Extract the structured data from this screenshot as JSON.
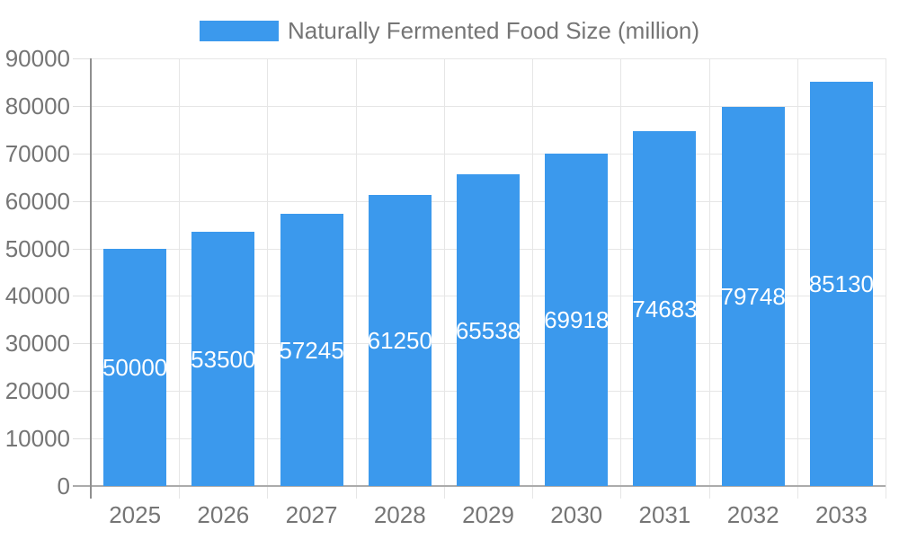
{
  "chart_data": {
    "type": "bar",
    "title": "",
    "legend": "Naturally Fermented Food Size (million)",
    "legend_position": "top",
    "categories": [
      "2025",
      "2026",
      "2027",
      "2028",
      "2029",
      "2030",
      "2031",
      "2032",
      "2033"
    ],
    "values": [
      50000,
      53500,
      57245,
      61250,
      65538,
      69918,
      74683,
      79748,
      85130
    ],
    "xlabel": "",
    "ylabel": "",
    "ylim": [
      0,
      90000
    ],
    "y_ticks": [
      0,
      10000,
      20000,
      30000,
      40000,
      50000,
      60000,
      70000,
      80000,
      90000
    ],
    "grid": true,
    "value_labels": "inside-center",
    "colors": {
      "bar": "#3B99ED",
      "grid": "#E6E6E6",
      "tick": "#E0E0E0",
      "axis_line": "#8F8F8F",
      "baseline": "#ABABAB",
      "axis_label": "#757575",
      "value_label": "#FFFFFF",
      "background": "#FFFFFF"
    }
  }
}
